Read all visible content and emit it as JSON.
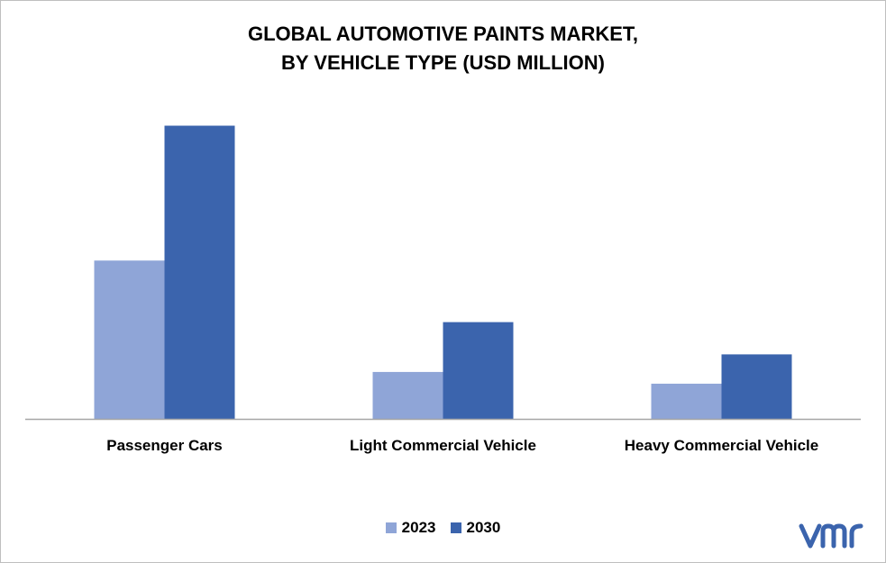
{
  "chart_data": {
    "type": "bar",
    "title_lines": [
      "GLOBAL AUTOMOTIVE PAINTS MARKET,",
      "BY VEHICLE TYPE (USD MILLION)"
    ],
    "categories": [
      "Passenger Cars",
      "Light Commercial Vehicle",
      "Heavy Commercial Vehicle"
    ],
    "series": [
      {
        "name": "2023",
        "values": [
          5.4,
          1.6,
          1.2
        ],
        "color": "#8FA5D7"
      },
      {
        "name": "2030",
        "values": [
          10.0,
          3.3,
          2.2
        ],
        "color": "#3B64AD"
      }
    ],
    "ylim": [
      0,
      10.6
    ],
    "grid": false,
    "legend_position": "bottom"
  },
  "logo": {
    "text": "vmr",
    "color": "#3B64AD"
  }
}
